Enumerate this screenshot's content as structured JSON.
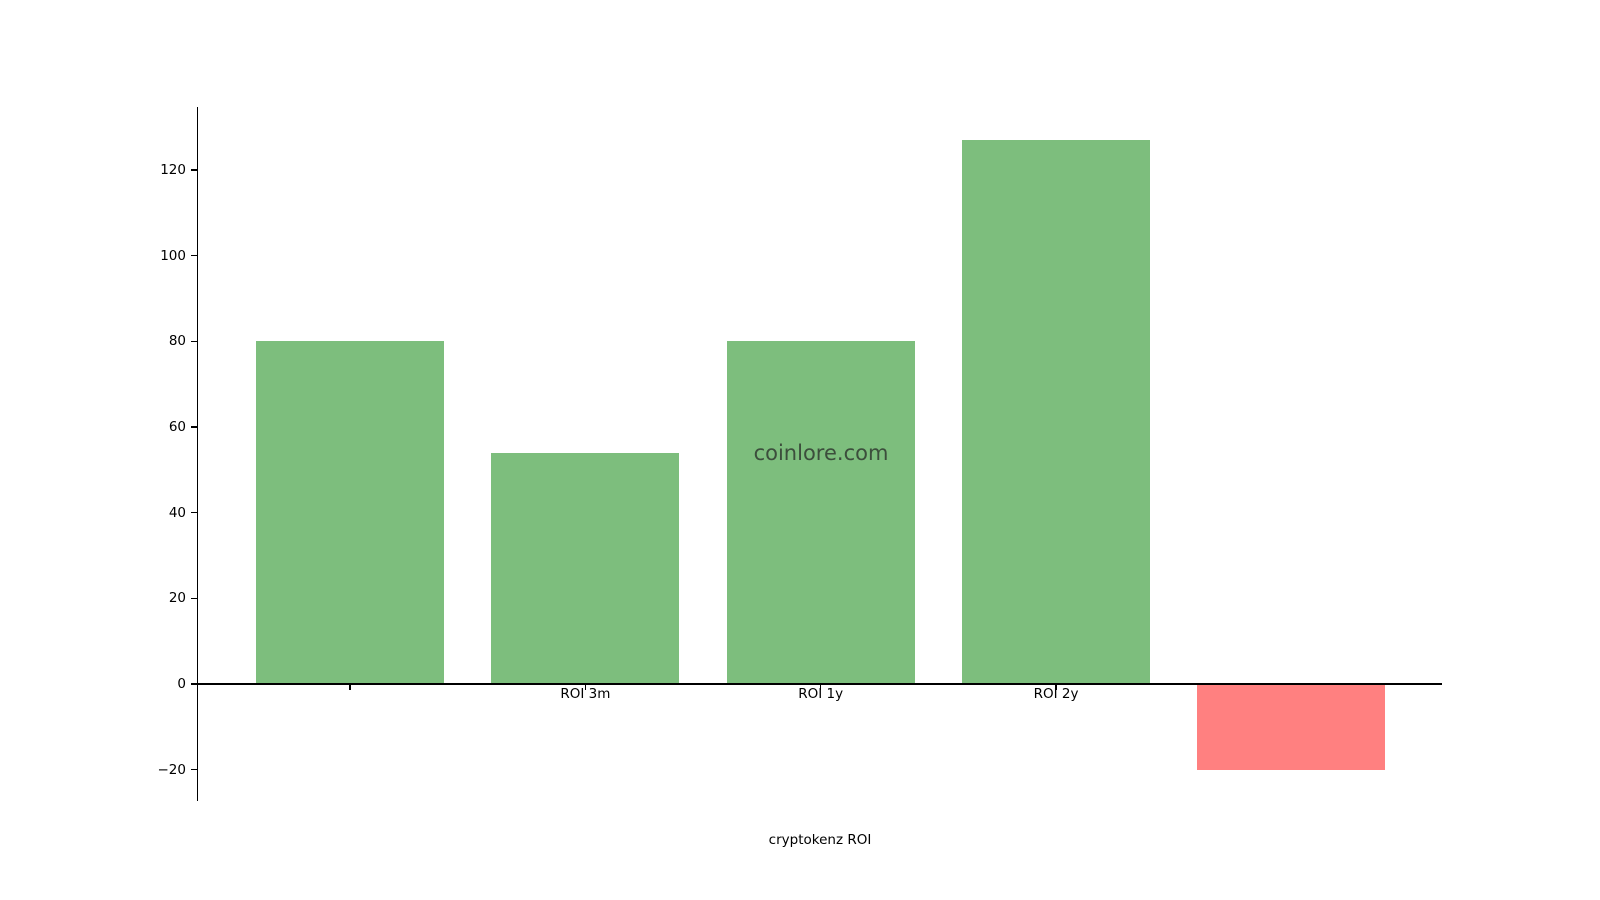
{
  "page": {
    "background_color": "#ffffff"
  },
  "chart_data": {
    "type": "bar",
    "title": "cryptokenz ROI",
    "watermark": "coinlore.com",
    "categories": [
      "",
      "ROI 3m",
      "ROI 1y",
      "ROI 2y",
      ""
    ],
    "values": [
      80,
      54,
      80,
      127,
      -20
    ],
    "category_has_tick": [
      true,
      true,
      true,
      true,
      false
    ],
    "bar_color_positive": "#7dbe7d",
    "bar_color_negative": "#ff8080",
    "yticks": [
      120,
      100,
      80,
      60,
      40,
      20,
      0,
      -20
    ],
    "ytick_labels": [
      "120",
      "100",
      "80",
      "60",
      "40",
      "20",
      "0",
      "−20"
    ],
    "ylim": [
      -27.3,
      134.7
    ],
    "axis_color": "#000000",
    "text_color": "#000000",
    "watermark_color": "rgba(35,35,35,0.72)",
    "grid": false,
    "legend_position": "none"
  }
}
